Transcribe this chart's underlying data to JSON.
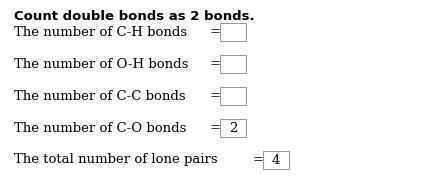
{
  "title": "Count double bonds as 2 bonds.",
  "title_fontsize": 9.5,
  "rows": [
    {
      "label": "The number of C-H bonds",
      "value": ""
    },
    {
      "label": "The number of O-H bonds",
      "value": ""
    },
    {
      "label": "The number of C-C bonds",
      "value": ""
    },
    {
      "label": "The number of C-O bonds",
      "value": "2"
    },
    {
      "label": "The total number of lone pairs",
      "value": "4"
    }
  ],
  "label_fontsize": 9.5,
  "background_color": "#ffffff",
  "text_color": "#000000",
  "box_edge_color": "#999999"
}
